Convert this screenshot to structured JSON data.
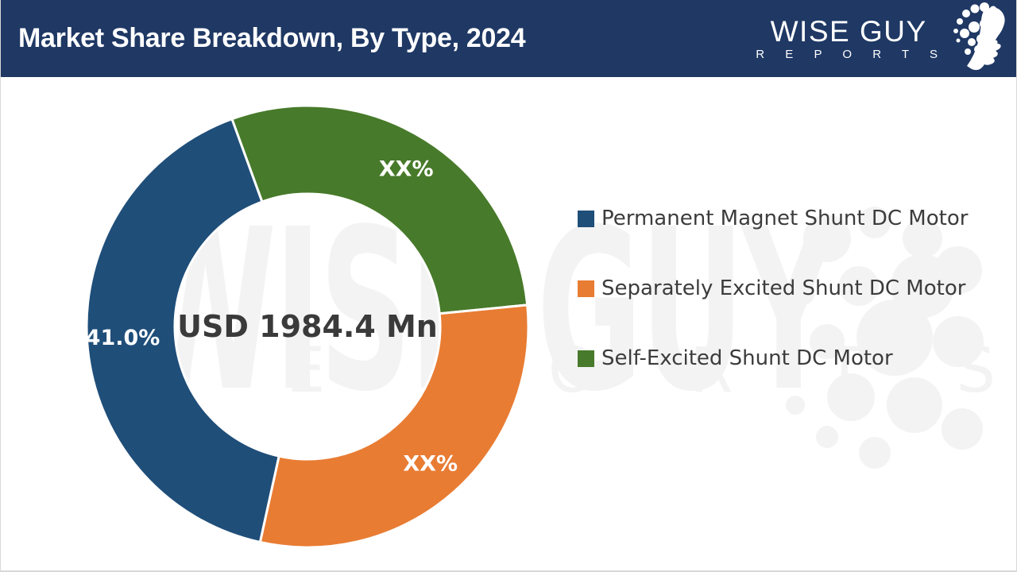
{
  "header": {
    "title": "Market Share Breakdown, By Type, 2024",
    "logo": {
      "line1": "WISE GUY",
      "line2": "R E P O R T S"
    }
  },
  "watermark": {
    "line1": "WISE GUY",
    "line2": "R E P O R T S"
  },
  "colors": {
    "header_bg": "#1f3864",
    "page_border": "#d9d9d9",
    "center_text": "#3a3a3a",
    "legend_text": "#3c3c3c",
    "watermark": "#f3f3f3",
    "slice_separator": "#ffffff"
  },
  "chart_data": {
    "type": "pie",
    "donut": true,
    "title": "Market Share Breakdown, By Type, 2024",
    "center_label": "USD 1984.4 Mn",
    "start_angle_deg": -20,
    "inner_radius_ratio": 0.6,
    "legend_position": "right",
    "slices": [
      {
        "label": "Self-Excited Shunt DC Motor",
        "value_pct": 29,
        "display_label": "XX%",
        "color": "#477a2a"
      },
      {
        "label": "Separately Excited Shunt DC Motor",
        "value_pct": 30,
        "display_label": "XX%",
        "color": "#e87c33"
      },
      {
        "label": "Permanent Magnet Shunt DC Motor",
        "value_pct": 41.0,
        "display_label": "41.0%",
        "color": "#1f4e79"
      }
    ],
    "legend": [
      {
        "label": "Permanent Magnet Shunt DC Motor",
        "color": "#1f4e79"
      },
      {
        "label": "Separately Excited Shunt DC Motor",
        "color": "#e87c33"
      },
      {
        "label": "Self-Excited Shunt DC Motor",
        "color": "#477a2a"
      }
    ]
  }
}
